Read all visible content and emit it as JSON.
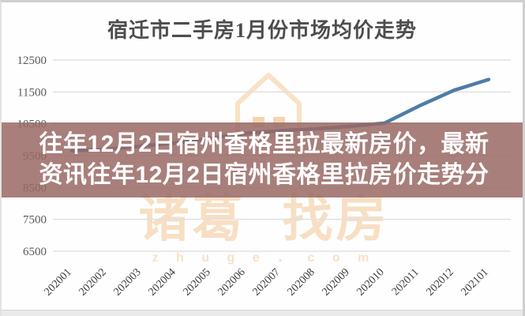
{
  "page": {
    "title": "宿迁市二手房1月份市场均价走势"
  },
  "chart_data": {
    "type": "line",
    "title": "宿迁市二手房1月份市场均价走势",
    "categories": [
      "202001",
      "202002",
      "202003",
      "202004",
      "202005",
      "202006",
      "202007",
      "202008",
      "202009",
      "202010",
      "202011",
      "202012",
      "202101"
    ],
    "series": [
      {
        "name": "",
        "values": [
          9650,
          9700,
          9800,
          9900,
          10050,
          10200,
          10280,
          10340,
          10420,
          10520,
          11060,
          11550,
          11890
        ]
      }
    ],
    "ylim": [
      6500,
      12500
    ],
    "yticks": [
      12500,
      11500,
      10500,
      9500,
      8500,
      7500,
      6500
    ],
    "grid": true,
    "legend": false,
    "xlabel": "",
    "ylabel": "",
    "line_color": "#4e7ca8",
    "grid_color": "#e0e0e0",
    "ytick_color": "#5a5a5a",
    "xtick_color": "#3c3c3c"
  },
  "overlay_banner": {
    "line1": "往年12月2日宿州香格里拉最新房价，最新",
    "line2": "资讯往年12月2日宿州香格里拉房价走势分",
    "bg_color": "rgba(153,104,100,0.85)",
    "text_color": "#ffffff"
  },
  "watermark": {
    "logo": "house-icon",
    "text_left": "诸葛",
    "text_right": "找房",
    "subtext": "z h u g e ． c o m",
    "text_color": "rgba(243,201,155,0.6)",
    "subtext_color": "rgba(246,211,170,0.7)",
    "logo_stroke_color": "rgba(247,216,178,0.75)",
    "logo_fill_color": "rgba(243,198,148,0.75)"
  }
}
